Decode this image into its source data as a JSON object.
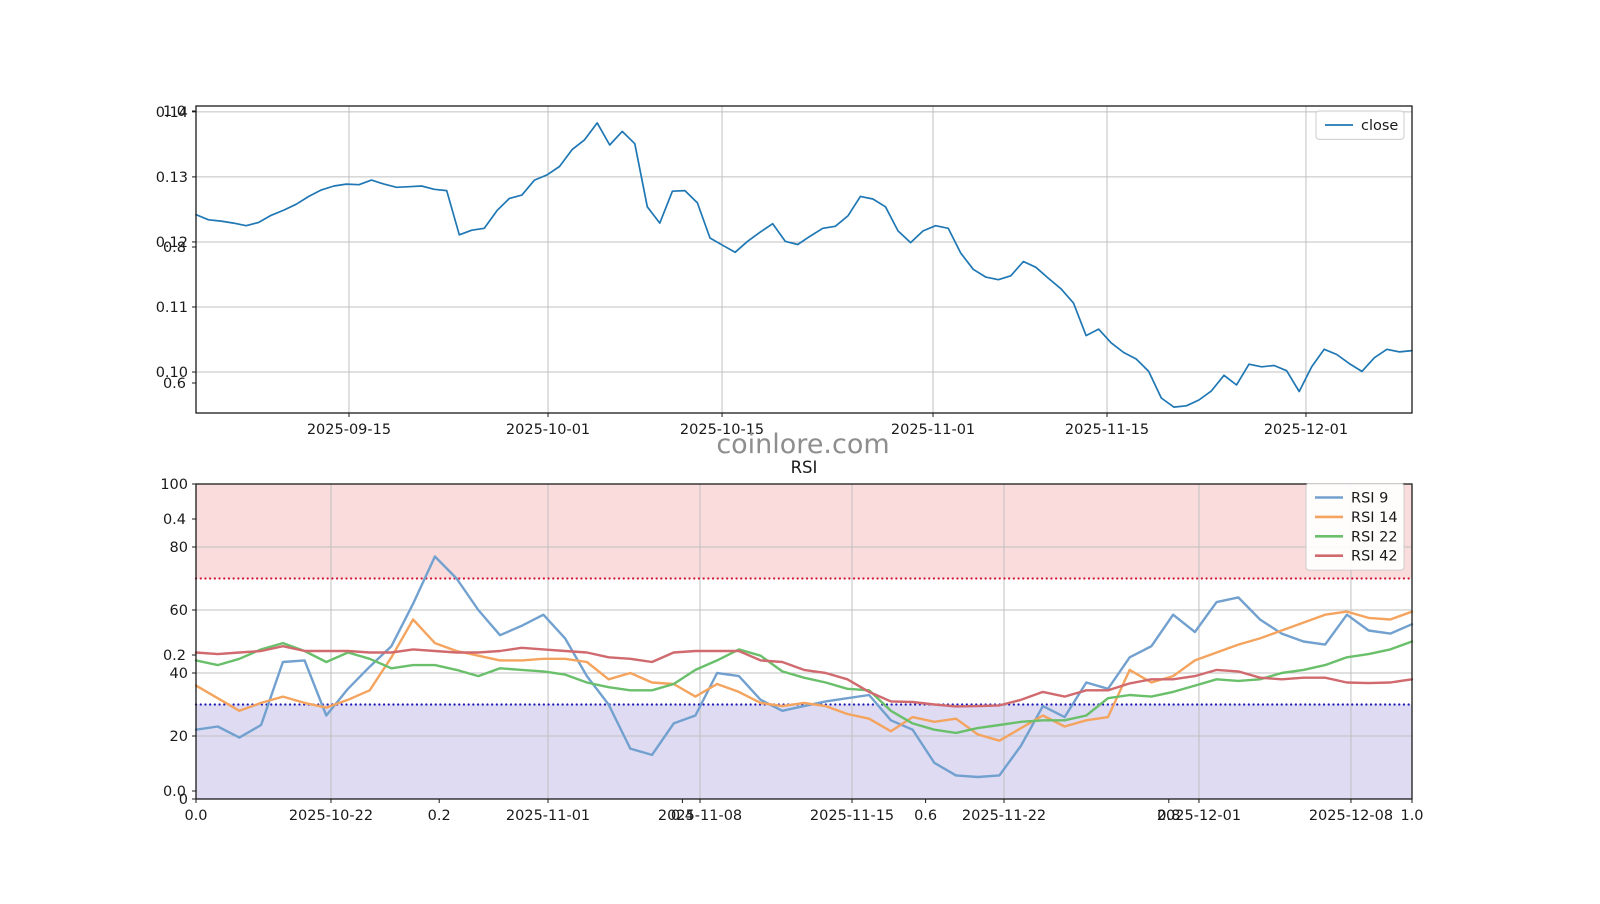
{
  "watermark": "coinlore.com",
  "colors": {
    "background": "#ffffff",
    "grid": "#c0c0c0",
    "spine": "#1a1a1a",
    "text": "#1a1a1a",
    "watermark": "#8e8e8e",
    "legend_border": "#cccccc",
    "overbought_band": "#fadcdc",
    "oversold_band": "#dedbf2",
    "overbought_line": "#d41937",
    "oversold_line": "#1a1ab8"
  },
  "chart_data": [
    {
      "id": "price",
      "type": "line",
      "title": "",
      "xlabel": "",
      "ylabel": "",
      "grid": true,
      "ylim": [
        0.0937,
        0.1409
      ],
      "yticks": [
        {
          "v": 0.1,
          "label": "0.10"
        },
        {
          "v": 0.11,
          "label": "0.11"
        },
        {
          "v": 0.12,
          "label": "0.12"
        },
        {
          "v": 0.13,
          "label": "0.13"
        },
        {
          "v": 0.14,
          "label": "0.14"
        }
      ],
      "xticks": [
        {
          "pos": 0.1258,
          "label": "2025-09-15"
        },
        {
          "pos": 0.2895,
          "label": "2025-10-01"
        },
        {
          "pos": 0.4326,
          "label": "2025-10-15"
        },
        {
          "pos": 0.6061,
          "label": "2025-11-01"
        },
        {
          "pos": 0.7492,
          "label": "2025-11-15"
        },
        {
          "pos": 0.9128,
          "label": "2025-12-01"
        }
      ],
      "legend": {
        "position": "upper right",
        "entries": [
          {
            "label": "close",
            "color": "#1f77b4"
          }
        ]
      },
      "series": [
        {
          "name": "close",
          "color": "#1f77b4",
          "width": 1.7,
          "values": [
            0.1242,
            0.1234,
            0.1232,
            0.1229,
            0.1225,
            0.123,
            0.1241,
            0.1249,
            0.1258,
            0.127,
            0.128,
            0.1286,
            0.1289,
            0.1288,
            0.1295,
            0.1289,
            0.1284,
            0.1285,
            0.1286,
            0.1281,
            0.1279,
            0.1211,
            0.1218,
            0.1221,
            0.1248,
            0.1267,
            0.1272,
            0.1295,
            0.1303,
            0.1316,
            0.1342,
            0.1357,
            0.1383,
            0.1349,
            0.137,
            0.1351,
            0.1254,
            0.1229,
            0.1278,
            0.1279,
            0.126,
            0.1206,
            0.1195,
            0.1184,
            0.1201,
            0.1215,
            0.1228,
            0.1201,
            0.1196,
            0.1209,
            0.1221,
            0.1224,
            0.124,
            0.127,
            0.1266,
            0.1254,
            0.1217,
            0.1199,
            0.1217,
            0.1225,
            0.1221,
            0.1183,
            0.1158,
            0.1146,
            0.1142,
            0.1148,
            0.117,
            0.1161,
            0.1144,
            0.1128,
            0.1106,
            0.1056,
            0.1066,
            0.1045,
            0.103,
            0.102,
            0.1001,
            0.096,
            0.0946,
            0.0948,
            0.0957,
            0.0971,
            0.0995,
            0.098,
            0.1012,
            0.1008,
            0.101,
            0.1002,
            0.097,
            0.1008,
            0.1035,
            0.1027,
            0.1013,
            0.1001,
            0.1022,
            0.1035,
            0.1031,
            0.1033
          ]
        }
      ]
    },
    {
      "id": "rsi",
      "type": "line",
      "title": "RSI",
      "xlabel": "",
      "ylabel": "",
      "grid": true,
      "ylim": [
        0,
        100
      ],
      "yticks": [
        {
          "v": 0,
          "label": "0"
        },
        {
          "v": 20,
          "label": "20"
        },
        {
          "v": 40,
          "label": "40"
        },
        {
          "v": 60,
          "label": "60"
        },
        {
          "v": 80,
          "label": "80"
        },
        {
          "v": 100,
          "label": "100"
        }
      ],
      "xticks": [
        {
          "pos": 0.111,
          "label": "2025-10-22"
        },
        {
          "pos": 0.2895,
          "label": "2025-11-01"
        },
        {
          "pos": 0.4145,
          "label": "2025-11-08"
        },
        {
          "pos": 0.5395,
          "label": "2025-11-15"
        },
        {
          "pos": 0.6645,
          "label": "2025-11-22"
        },
        {
          "pos": 0.8248,
          "label": "2025-12-01"
        },
        {
          "pos": 0.9498,
          "label": "2025-12-08"
        }
      ],
      "bands": [
        {
          "name": "overbought-band",
          "from": 70,
          "to": 100,
          "color": "#fadcdc"
        },
        {
          "name": "oversold-band",
          "from": 0,
          "to": 30,
          "color": "#dedbf2"
        }
      ],
      "hlines": [
        {
          "name": "overbought-line",
          "v": 70,
          "color": "#d41937"
        },
        {
          "name": "oversold-line",
          "v": 30,
          "color": "#1a1ab8"
        }
      ],
      "legend": {
        "position": "upper right",
        "entries": [
          {
            "label": "RSI 9",
            "color": "#72a1cf"
          },
          {
            "label": "RSI 14",
            "color": "#f4a45e"
          },
          {
            "label": "RSI 22",
            "color": "#6abf6b"
          },
          {
            "label": "RSI 42",
            "color": "#d06a6e"
          }
        ]
      },
      "series": [
        {
          "name": "RSI 9",
          "color": "#72a1cf",
          "width": 2.4,
          "values": [
            22,
            23,
            19.5,
            23.5,
            43.5,
            44,
            26.5,
            35,
            42,
            48.5,
            62,
            77,
            70,
            60,
            52,
            55,
            58.5,
            51,
            39,
            30,
            16,
            14,
            24,
            26.5,
            40,
            39,
            31.5,
            28,
            29.5,
            31,
            32,
            33,
            25,
            22,
            11.5,
            7.5,
            7,
            7.5,
            17,
            29.5,
            26,
            37,
            35,
            45,
            48.5,
            58.5,
            53,
            62.5,
            64,
            57,
            52.5,
            50,
            49,
            58.5,
            53.5,
            52.5,
            55.5
          ]
        },
        {
          "name": "RSI 14",
          "color": "#f4a45e",
          "width": 2.4,
          "values": [
            36,
            32,
            28,
            30.5,
            32.5,
            30.5,
            29,
            31.5,
            34.5,
            45,
            57,
            49.5,
            47,
            45.5,
            44,
            44,
            44.5,
            44.5,
            43.5,
            38,
            40,
            37,
            36.5,
            32.5,
            36.5,
            34,
            30.5,
            29.5,
            30.5,
            29.5,
            27,
            25.5,
            21.5,
            26,
            24.5,
            25.5,
            20.5,
            18.5,
            22.5,
            26.5,
            23,
            25,
            26,
            41,
            37,
            39,
            44,
            46.5,
            49,
            51,
            53.5,
            56,
            58.5,
            59.5,
            57.5,
            57,
            59.5
          ]
        },
        {
          "name": "RSI 22",
          "color": "#6abf6b",
          "width": 2.4,
          "values": [
            44,
            42.5,
            44.5,
            47.5,
            49.5,
            47,
            43.5,
            46.5,
            44.5,
            41.5,
            42.5,
            42.5,
            41,
            39,
            41.5,
            41,
            40.5,
            39.5,
            37,
            35.5,
            34.5,
            34.5,
            36.5,
            41,
            44,
            47.5,
            45.5,
            40.5,
            38.5,
            37,
            35,
            34.5,
            28,
            24,
            22,
            21,
            22.5,
            23.5,
            24.5,
            25,
            25,
            26.5,
            32,
            33,
            32.5,
            34,
            36,
            38,
            37.5,
            38,
            40,
            41,
            42.5,
            45,
            46,
            47.5,
            50
          ]
        },
        {
          "name": "RSI 42",
          "color": "#d06a6e",
          "width": 2.4,
          "values": [
            46.5,
            46,
            46.5,
            47,
            48.5,
            47,
            47,
            47,
            46.5,
            46.5,
            47.5,
            47,
            46.5,
            46.5,
            47,
            48,
            47.5,
            47,
            46.5,
            45,
            44.5,
            43.5,
            46.5,
            47,
            47,
            47,
            44,
            43.5,
            41,
            40,
            38,
            34,
            31,
            30.8,
            30,
            29.4,
            29.5,
            29.7,
            31.5,
            34,
            32.5,
            34.5,
            34.5,
            36.7,
            38,
            38,
            39,
            41,
            40.5,
            38.5,
            38,
            38.5,
            38.5,
            37,
            36.8,
            37,
            38
          ]
        }
      ]
    },
    {
      "id": "overlay",
      "type": "axis-overlay",
      "xticks": [
        {
          "pos": 0.0,
          "label": "0.0"
        },
        {
          "pos": 0.2,
          "label": "0.2"
        },
        {
          "pos": 0.4,
          "label": "0.4"
        },
        {
          "pos": 0.6,
          "label": "0.6"
        },
        {
          "pos": 0.8,
          "label": "0.8"
        },
        {
          "pos": 1.0,
          "label": "1.0"
        }
      ],
      "yticks": [
        {
          "pos": 0.0,
          "label": "0.0"
        },
        {
          "pos": 0.2,
          "label": "0.2"
        },
        {
          "pos": 0.4,
          "label": "0.4"
        },
        {
          "pos": 0.6,
          "label": "0.6"
        },
        {
          "pos": 0.8,
          "label": "0.8"
        },
        {
          "pos": 1.0,
          "label": "1.0"
        }
      ]
    }
  ]
}
